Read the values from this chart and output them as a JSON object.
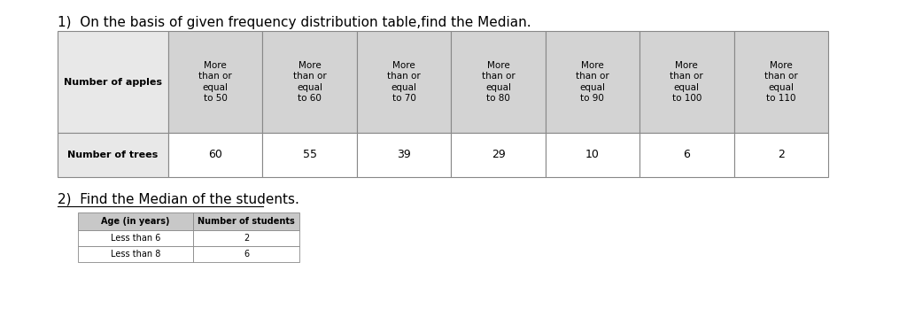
{
  "title1": "1)  On the basis of given frequency distribution table,find the Median.",
  "title2": "2)  Find the Median of the students.",
  "table1": {
    "row1_label": "Number of apples",
    "col_headers": [
      "More\nthan or\nequal\nto 50",
      "More\nthan or\nequal\nto 60",
      "More\nthan or\nequal\nto 70",
      "More\nthan or\nequal\nto 80",
      "More\nthan or\nequal\nto 90",
      "More\nthan or\nequal\nto 100",
      "More\nthan or\nequal\nto 110"
    ],
    "row2_label": "Number of trees",
    "row2_values": [
      "60",
      "55",
      "39",
      "29",
      "10",
      "6",
      "2"
    ],
    "header_bg": "#d3d3d3",
    "row1_bg": "#e8e8e8",
    "row2_bg": "#ffffff",
    "border_color": "#888888"
  },
  "table2": {
    "col_headers": [
      "Age (in years)",
      "Number of students"
    ],
    "rows": [
      [
        "Less than 6",
        "2"
      ],
      [
        "Less than 8",
        "6"
      ]
    ],
    "header_bg": "#c8c8c8",
    "row_bg": "#ffffff",
    "border_color": "#888888"
  },
  "bg_color": "#ffffff",
  "title_fontsize": 11,
  "table1_fontsize": 8,
  "table2_fontsize": 7
}
